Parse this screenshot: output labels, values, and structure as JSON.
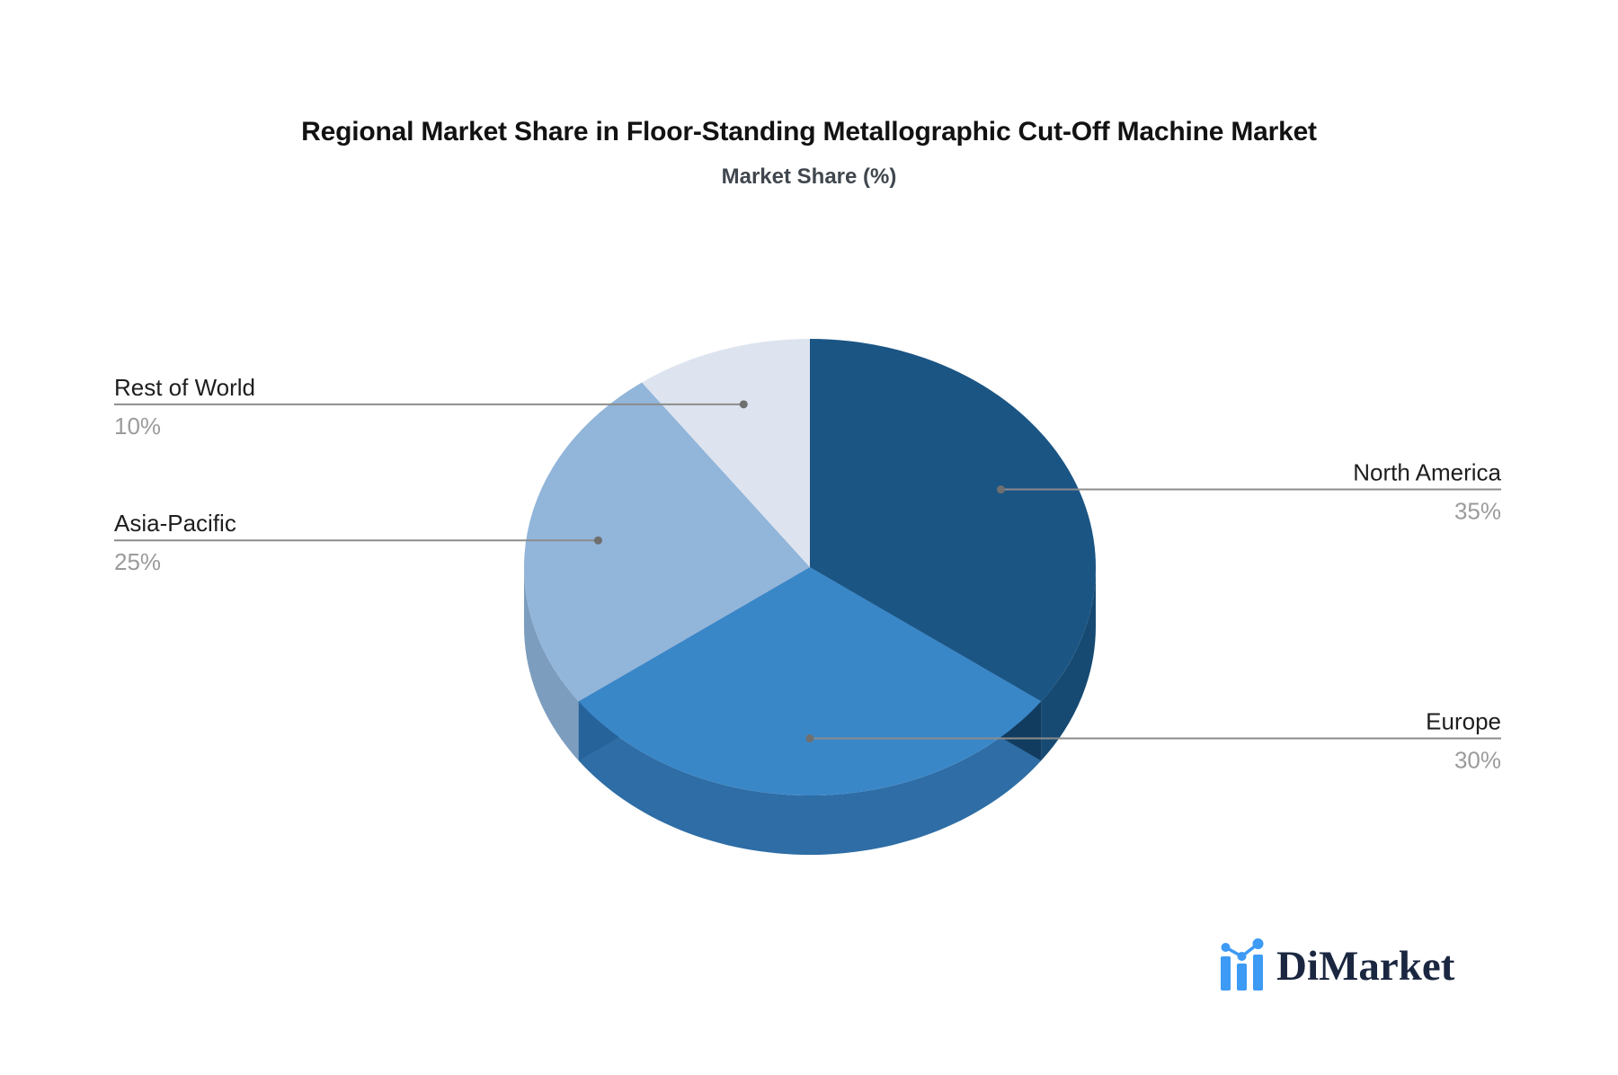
{
  "page": {
    "background_color": "#FFFFFF"
  },
  "chart_data": {
    "type": "pie",
    "effect": "3d",
    "title": "Regional Market Share in Floor-Standing Metallographic Cut-Off Machine Market",
    "subtitle": "Market Share (%)",
    "unit": "%",
    "start_angle_deg": 0,
    "direction": "clockwise",
    "legend_position": "none",
    "categories": [
      "North America",
      "Europe",
      "Asia-Pacific",
      "Rest of World"
    ],
    "values": [
      35,
      30,
      25,
      10
    ],
    "slices": [
      {
        "label": "North America",
        "value": 35,
        "display_value": "35%",
        "label_side": "right",
        "top_color": "#1B5584",
        "side_color": "#164A72",
        "end_wall_color": "#123C5F"
      },
      {
        "label": "Europe",
        "value": 30,
        "display_value": "30%",
        "label_side": "right",
        "top_color": "#3A87C8",
        "side_color": "#2E6DA5",
        "end_wall_color": "#27639B"
      },
      {
        "label": "Asia-Pacific",
        "value": 25,
        "display_value": "25%",
        "label_side": "left",
        "top_color": "#92B5DA",
        "side_color": "#7C9DBE"
      },
      {
        "label": "Rest of World",
        "value": 10,
        "display_value": "10%",
        "label_side": "left",
        "top_color": "#DDE4EF",
        "side_color": "#C2CDDD"
      }
    ],
    "leader_line_color": "#8C8C8C",
    "leader_dot_color": "#6F6F6F",
    "label_text_color": "#1E1E1E",
    "label_value_color": "#9B9B9B",
    "title_color": "#121212",
    "subtitle_color": "#40474E"
  },
  "logo": {
    "text": "DiMarket",
    "icon": "bar-chart-sparkline-icon",
    "icon_color": "#3D9AF5",
    "text_color": "#1B2740"
  }
}
